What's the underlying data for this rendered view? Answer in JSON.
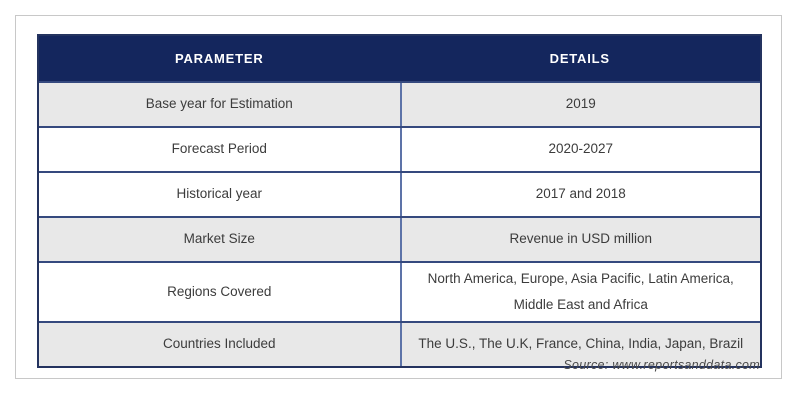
{
  "table": {
    "header": {
      "parameter": "PARAMETER",
      "details": "DETAILS"
    },
    "rows": [
      {
        "parameter": "Base year for Estimation",
        "details": "2019"
      },
      {
        "parameter": "Forecast Period",
        "details": "2020-2027"
      },
      {
        "parameter": "Historical year",
        "details": "2017 and 2018"
      },
      {
        "parameter": "Market Size",
        "details": "Revenue in USD million"
      },
      {
        "parameter": "Regions Covered",
        "details": "North America, Europe, Asia Pacific, Latin America, Middle East and Africa"
      },
      {
        "parameter": "Countries Included",
        "details": "The U.S., The  U.K, France, China, India, Japan, Brazil"
      }
    ]
  },
  "source": {
    "text": "Source: www.reportsanddata.com"
  },
  "colors": {
    "header_bg": "#14265d",
    "header_text": "#ffffff",
    "row_shaded": "#e8e8e8",
    "table_border": "#24335f",
    "row_border": "#35497e",
    "divider": "#5d73a8",
    "frame_border": "#c8c8c8",
    "cell_text": "#3c3c3c",
    "source_text": "#4a4a4a"
  }
}
